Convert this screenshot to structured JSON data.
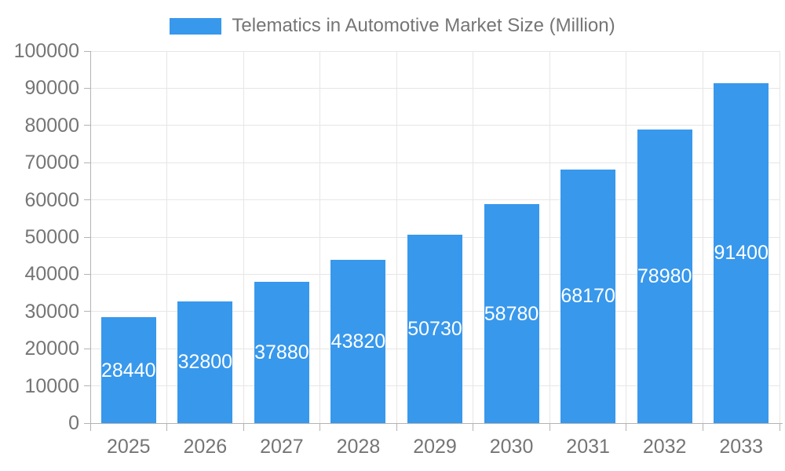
{
  "chart_data": {
    "type": "bar",
    "title": "Telematics in Automotive Market Size (Million)",
    "legend_entries": [
      "Telematics in Automotive Market Size (Million)"
    ],
    "legend_position": "top-center",
    "categories": [
      "2025",
      "2026",
      "2027",
      "2028",
      "2029",
      "2030",
      "2031",
      "2032",
      "2033"
    ],
    "values": [
      28440,
      32800,
      37880,
      43820,
      50730,
      58780,
      68170,
      78980,
      91400
    ],
    "bar_labels": [
      "28440",
      "32800",
      "37880",
      "43820",
      "50730",
      "58780",
      "68170",
      "78980",
      "91400"
    ],
    "xlabel": "",
    "ylabel": "",
    "ylim": [
      0,
      100000
    ],
    "ytick_step": 10000,
    "ytick_labels": [
      "0",
      "10000",
      "20000",
      "30000",
      "40000",
      "50000",
      "60000",
      "70000",
      "80000",
      "90000",
      "100000"
    ],
    "grid": true,
    "colors": {
      "bar": "#3898EC",
      "bar_label_text": "#FFFFFF",
      "axis_text": "#757575",
      "grid_line": "#E6E6E6",
      "axis_line": "#B3B3B3",
      "background": "#FFFFFF"
    }
  }
}
